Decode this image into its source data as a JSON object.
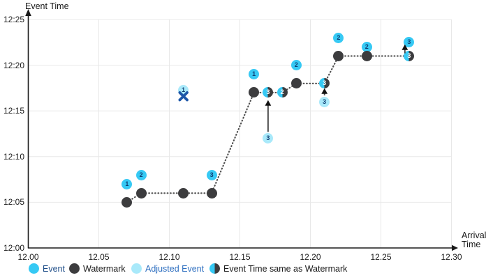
{
  "chart_data": {
    "type": "scatter",
    "title": "",
    "y_axis": {
      "title": "Event Time",
      "tick_labels": [
        "12:00",
        "12:05",
        "12:10",
        "12:15",
        "12:20",
        "12:25"
      ],
      "tick_minutes": [
        0,
        5,
        10,
        15,
        20,
        25
      ],
      "range_minutes": [
        0,
        25
      ]
    },
    "x_axis": {
      "title_lines": [
        "Arrival",
        "Time"
      ],
      "tick_labels": [
        "12.00",
        "12.05",
        "12.10",
        "12.15",
        "12.20",
        "12.25",
        "12.30"
      ],
      "tick_values": [
        12.0,
        12.05,
        12.1,
        12.15,
        12.2,
        12.25,
        12.3
      ],
      "range": [
        12.0,
        12.3
      ]
    },
    "grid": true,
    "legend_position": "bottom",
    "watermark_line_points": [
      [
        12.07,
        5
      ],
      [
        12.08,
        6
      ],
      [
        12.11,
        6
      ],
      [
        12.13,
        6
      ],
      [
        12.16,
        17
      ],
      [
        12.17,
        17
      ],
      [
        12.18,
        17
      ],
      [
        12.19,
        18
      ],
      [
        12.21,
        18
      ],
      [
        12.22,
        21
      ],
      [
        12.24,
        21
      ],
      [
        12.27,
        21
      ]
    ],
    "markers": [
      {
        "type": "adjusted_event",
        "num": "1",
        "arrival": 12.11,
        "minute": 17.3,
        "event_time": "12:17",
        "dropped": true
      },
      {
        "type": "adjusted_event",
        "num": "3",
        "arrival": 12.17,
        "minute": 12,
        "event_time": "12:12"
      },
      {
        "type": "adjusted_event",
        "num": "3",
        "arrival": 12.21,
        "minute": 16,
        "event_time": "12:16"
      },
      {
        "type": "event",
        "num": "1",
        "arrival": 12.07,
        "minute": 7,
        "event_time": "12:07"
      },
      {
        "type": "event",
        "num": "2",
        "arrival": 12.08,
        "minute": 8,
        "event_time": "12:08"
      },
      {
        "type": "event",
        "num": "3",
        "arrival": 12.13,
        "minute": 8,
        "event_time": "12:08"
      },
      {
        "type": "event",
        "num": "1",
        "arrival": 12.16,
        "minute": 19,
        "event_time": "12:19"
      },
      {
        "type": "event",
        "num": "2",
        "arrival": 12.19,
        "minute": 20,
        "event_time": "12:20"
      },
      {
        "type": "event",
        "num": "2",
        "arrival": 12.22,
        "minute": 23,
        "event_time": "12:23"
      },
      {
        "type": "event",
        "num": "2",
        "arrival": 12.24,
        "minute": 22,
        "event_time": "12:22"
      },
      {
        "type": "event",
        "num": "3",
        "arrival": 12.27,
        "minute": 22.5,
        "event_time": "12:22"
      },
      {
        "type": "watermark",
        "num": "",
        "arrival": 12.07,
        "minute": 5,
        "event_time": "12:05"
      },
      {
        "type": "watermark",
        "num": "",
        "arrival": 12.08,
        "minute": 6,
        "event_time": "12:06"
      },
      {
        "type": "watermark",
        "num": "",
        "arrival": 12.11,
        "minute": 6,
        "event_time": "12:06"
      },
      {
        "type": "watermark",
        "num": "",
        "arrival": 12.13,
        "minute": 6,
        "event_time": "12:06"
      },
      {
        "type": "watermark",
        "num": "",
        "arrival": 12.16,
        "minute": 17,
        "event_time": "12:17"
      },
      {
        "type": "watermark",
        "num": "",
        "arrival": 12.19,
        "minute": 18,
        "event_time": "12:18"
      },
      {
        "type": "watermark",
        "num": "",
        "arrival": 12.22,
        "minute": 21,
        "event_time": "12:21"
      },
      {
        "type": "watermark",
        "num": "",
        "arrival": 12.24,
        "minute": 21,
        "event_time": "12:21"
      },
      {
        "type": "same_as_watermark",
        "num": "3",
        "arrival": 12.17,
        "minute": 17,
        "event_time": "12:17"
      },
      {
        "type": "same_as_watermark",
        "num": "2",
        "arrival": 12.18,
        "minute": 17,
        "event_time": "12:17"
      },
      {
        "type": "same_as_watermark",
        "num": "3",
        "arrival": 12.21,
        "minute": 18,
        "event_time": "12:18"
      },
      {
        "type": "same_as_watermark",
        "num": "3",
        "arrival": 12.27,
        "minute": 21,
        "event_time": "12:21"
      }
    ],
    "dropped_x_mark": {
      "arrival": 12.11,
      "minute": 16.6
    },
    "arrows": [
      {
        "x": 12.17,
        "from_minute": 12.7,
        "to_minute": 16.1
      },
      {
        "x": 12.21,
        "from_minute": 16.7,
        "to_minute": 17.4
      },
      {
        "x": 12.267,
        "from_minute": 21.3,
        "to_minute": 22.2
      }
    ],
    "legend": [
      {
        "label": "Event",
        "swatch": "event",
        "label_color": "#1a4a86"
      },
      {
        "label": "Watermark",
        "swatch": "watermark",
        "label_color": "#1a1a1a"
      },
      {
        "label": "Adjusted Event",
        "swatch": "adjusted_event",
        "label_color": "#2e6fc0"
      },
      {
        "label": "Event Time same as Watermark",
        "swatch": "same_as_watermark",
        "label_color": "#1a1a1a"
      }
    ]
  },
  "colors": {
    "event": "#36c9f4",
    "watermark": "#3c3c3e",
    "adjusted_event": "#a9e9fa",
    "marker_number_dark": "#0e3e73",
    "marker_number_light": "#ffffff",
    "dropped_x": "#1d57a9",
    "watermark_line": "#4f4f4f",
    "arrow_line": "#4a4a4a",
    "arrow_head": "#111111",
    "grid": "#e8e8e8",
    "axis": "#1a1a1a"
  }
}
